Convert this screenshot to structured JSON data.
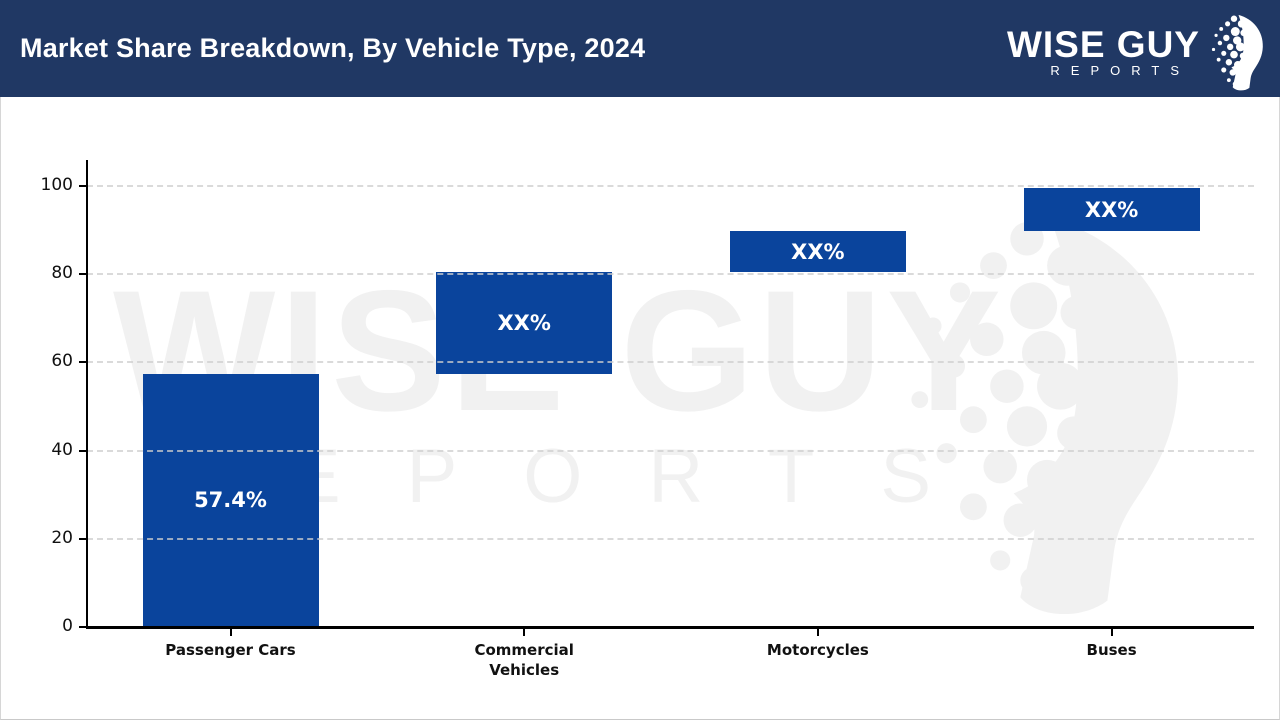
{
  "header": {
    "title": "Market Share Breakdown, By Vehicle Type, 2024",
    "logo": {
      "wordmark": "WISE GUY",
      "subtext": "REPORTS"
    }
  },
  "watermark": {
    "wordmark": "WISE GUY",
    "subtext": "REPORTS"
  },
  "chart_data": {
    "type": "bar",
    "subtype": "waterfall",
    "title": "Market Share Breakdown, By Vehicle Type, 2024",
    "categories": [
      "Passenger Cars",
      "Commercial\nVehicles",
      "Motorcycles",
      "Buses"
    ],
    "segments": [
      {
        "category": "Passenger Cars",
        "start": 0,
        "end": 57.4,
        "label": "57.4%"
      },
      {
        "category": "Commercial Vehicles",
        "start": 57.4,
        "end": 80.4,
        "label": "XX%"
      },
      {
        "category": "Motorcycles",
        "start": 80.4,
        "end": 89.7,
        "label": "XX%"
      },
      {
        "category": "Buses",
        "start": 89.7,
        "end": 99.6,
        "label": "XX%"
      }
    ],
    "ylabel": "",
    "xlabel": "",
    "yticks": [
      0,
      20,
      40,
      60,
      80,
      100
    ],
    "ylim": [
      0,
      106
    ],
    "grid": true,
    "gridline_style": "dashed",
    "bar_color": "#0a449c",
    "bar_label_color": "#ffffff",
    "header_color": "#203864",
    "watermark_color": "#f1f1f1"
  }
}
